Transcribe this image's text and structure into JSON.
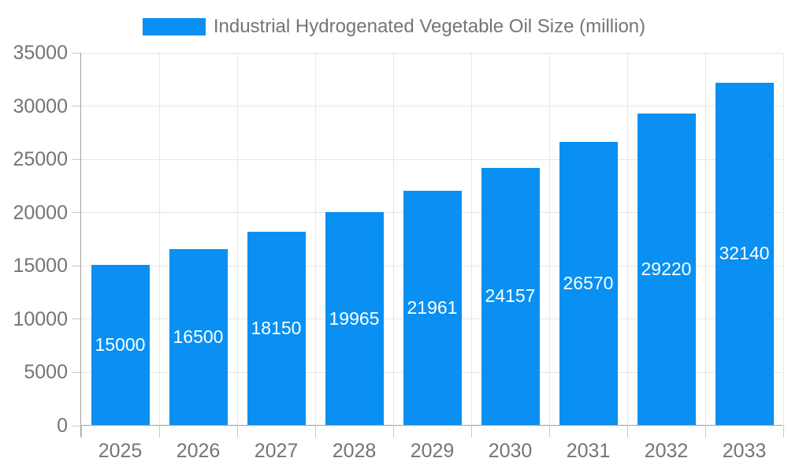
{
  "legend": {
    "label": "Industrial Hydrogenated Vegetable Oil Size (million)"
  },
  "chart_data": {
    "type": "bar",
    "title": "Industrial Hydrogenated Vegetable Oil Size (million)",
    "series_name": "Industrial Hydrogenated Vegetable Oil Size (million)",
    "categories": [
      "2025",
      "2026",
      "2027",
      "2028",
      "2029",
      "2030",
      "2031",
      "2032",
      "2033"
    ],
    "values": [
      15000,
      16500,
      18150,
      19965,
      21961,
      24157,
      26570,
      29220,
      32140
    ],
    "bar_value_labels": [
      "15000",
      "16500",
      "18150",
      "19965",
      "21961",
      "24157",
      "26570",
      "29220",
      "32140"
    ],
    "xlabel": "",
    "ylabel": "",
    "ylim": [
      0,
      35000
    ],
    "y_ticks": [
      0,
      5000,
      10000,
      15000,
      20000,
      25000,
      30000,
      35000
    ],
    "grid": true,
    "legend_position": "top-center",
    "value_label_position": "inside-center"
  },
  "colors": {
    "bar": "#0a90f2",
    "grid": "#e6e6e6",
    "axis": "#9e9e9e",
    "tick": "#c8c8c8",
    "text": "#757575",
    "bar_label": "#ffffff",
    "background": "#ffffff"
  }
}
